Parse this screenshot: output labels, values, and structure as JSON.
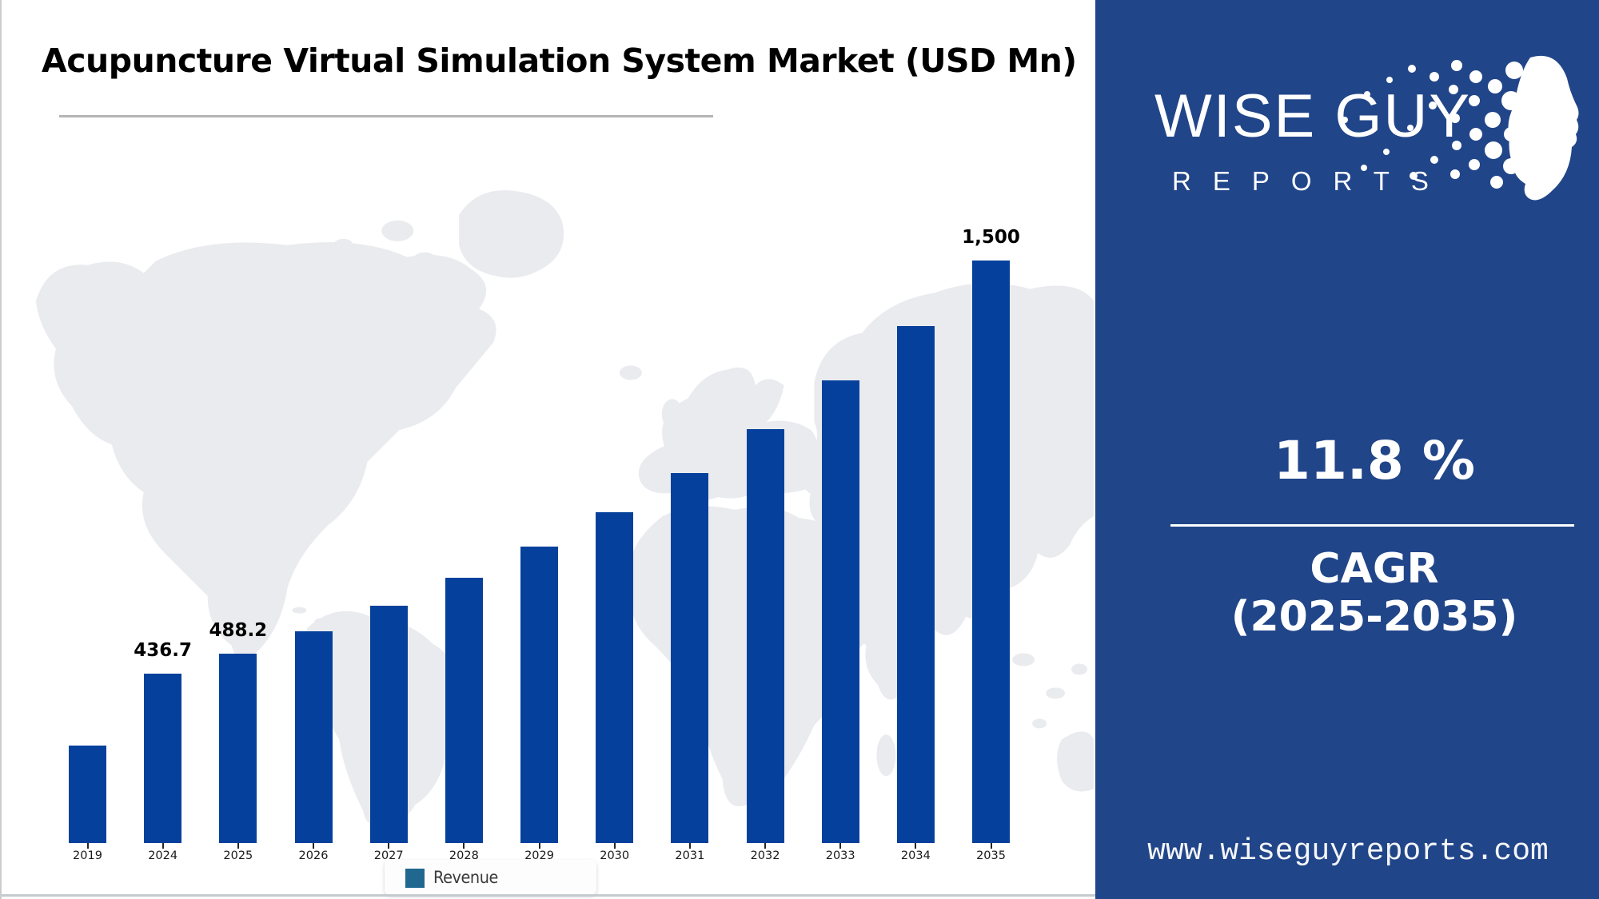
{
  "header": {
    "title": "Acupuncture Virtual Simulation System Market (USD Mn)"
  },
  "chart_data": {
    "type": "bar",
    "title": "Acupuncture Virtual Simulation System Market (USD Mn)",
    "xlabel": "",
    "ylabel": "",
    "categories": [
      "2019",
      "2024",
      "2025",
      "2026",
      "2027",
      "2028",
      "2029",
      "2030",
      "2031",
      "2032",
      "2033",
      "2034",
      "2035"
    ],
    "values": [
      250,
      436.7,
      488.2,
      545.8,
      610.2,
      682.2,
      762.7,
      852.7,
      953.3,
      1065.8,
      1191.6,
      1332.2,
      1500
    ],
    "value_labels": {
      "2024": "436.7",
      "2025": "488.2",
      "2035": "1,500"
    },
    "legend": [
      "Revenue"
    ],
    "legend_position": "bottom",
    "grid": false,
    "ylim": [
      0,
      1560
    ],
    "bar_color": "#05419c"
  },
  "legend": {
    "label": "Revenue",
    "swatch_color": "#20688f"
  },
  "sidebar": {
    "brand_line1": "WISE GUY",
    "brand_line2": "REPORTS",
    "cagr_value": "11.8 %",
    "cagr_label": "CAGR",
    "cagr_period": "(2025-2035)",
    "website": "www.wiseguyreports.com",
    "bg_color": "#214589"
  },
  "colors": {
    "bar": "#05419c",
    "sidebar_bg": "#214589",
    "map_fill": "#e9ebee",
    "title_underline": "#b5b5b5"
  }
}
